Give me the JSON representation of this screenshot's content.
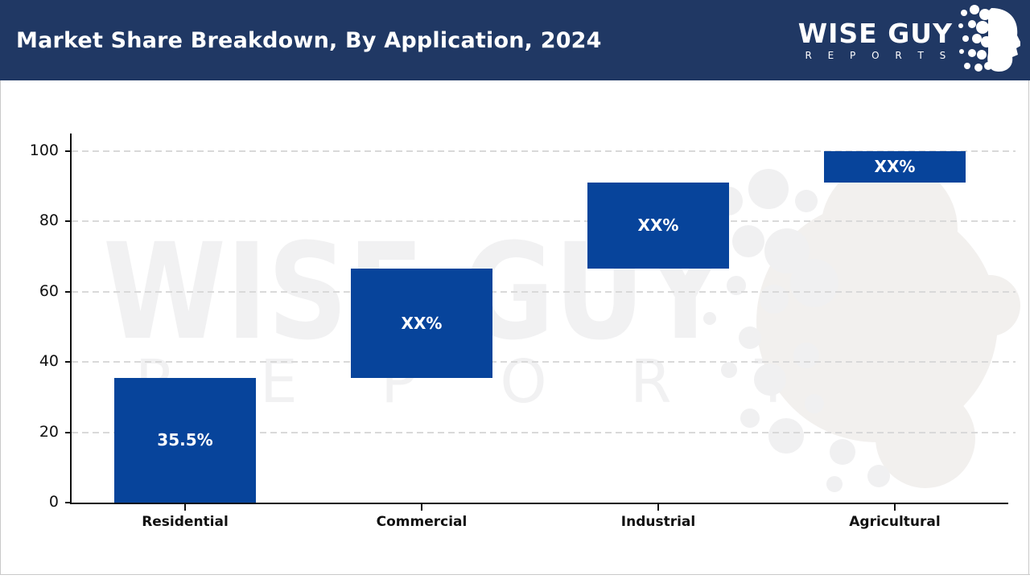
{
  "header": {
    "title": "Market Share Breakdown, By Application, 2024",
    "logo": {
      "line1": "WISE GUY",
      "line2": "R E P O R T S"
    }
  },
  "watermark": {
    "line1": "WISE GUY",
    "line2": "R E P O R T S"
  },
  "colors": {
    "header_bg": "#203864",
    "bar": "#07449b",
    "bar_label": "#ffffff",
    "grid": "#d9d9d9",
    "axis": "#111111",
    "watermark": "#f1f1f2"
  },
  "chart_data": {
    "type": "bar",
    "variant": "floating-segment-waterfall",
    "title": "Market Share Breakdown, By Application, 2024",
    "categories": [
      "Residential",
      "Commercial",
      "Industrial",
      "Agricultural"
    ],
    "bars": [
      {
        "category": "Residential",
        "label": "35.5%",
        "start": 0,
        "end": 35.5,
        "value": 35.5
      },
      {
        "category": "Commercial",
        "label": "XX%",
        "start": 35.5,
        "end": 66.5,
        "value": 31.0
      },
      {
        "category": "Industrial",
        "label": "XX%",
        "start": 66.5,
        "end": 91.0,
        "value": 24.5
      },
      {
        "category": "Agricultural",
        "label": "XX%",
        "start": 91.0,
        "end": 100.0,
        "value": 9.0
      }
    ],
    "xlabel": "",
    "ylabel": "",
    "ylim": [
      0,
      105
    ],
    "yticks": [
      0,
      20,
      40,
      60,
      80,
      100
    ],
    "grid": "horizontal-dashed",
    "legend": "none"
  }
}
